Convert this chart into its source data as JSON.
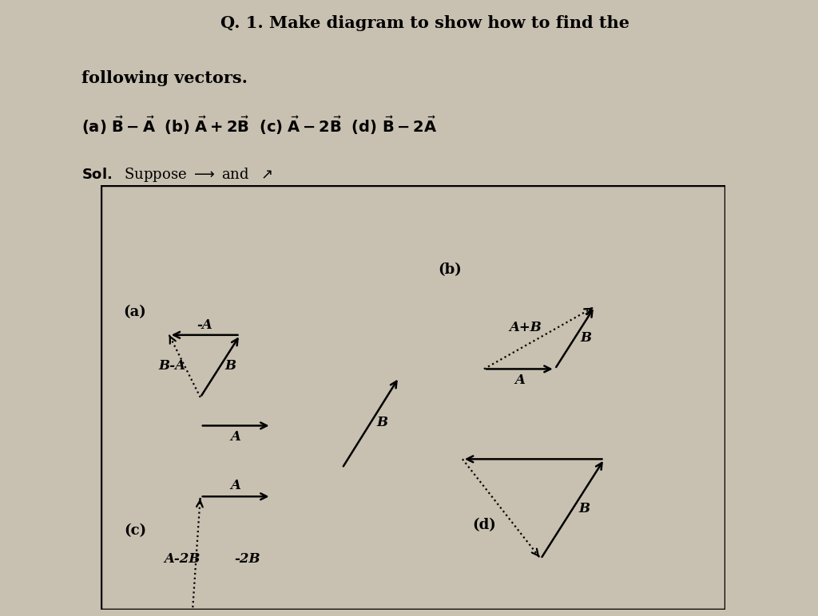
{
  "title_line1": "Q. 1. Make diagram to show how to find the",
  "title_line2": "following vectors.",
  "label_a": "(a)",
  "label_b": "(b)",
  "label_c": "(c)",
  "label_d": "(d)",
  "background": "#c8c0b0",
  "box_facecolor": "#c8c0b0",
  "text_color": "#111111",
  "arrow_color": "#111111",
  "dot_color": "#333333",
  "A_vec": [
    2.5,
    0.0
  ],
  "B_vec": [
    1.4,
    2.2
  ],
  "B_vec_long": [
    1.8,
    2.8
  ],
  "title_fontsize": 15,
  "label_fontsize": 12,
  "vec_label_fontsize": 12
}
